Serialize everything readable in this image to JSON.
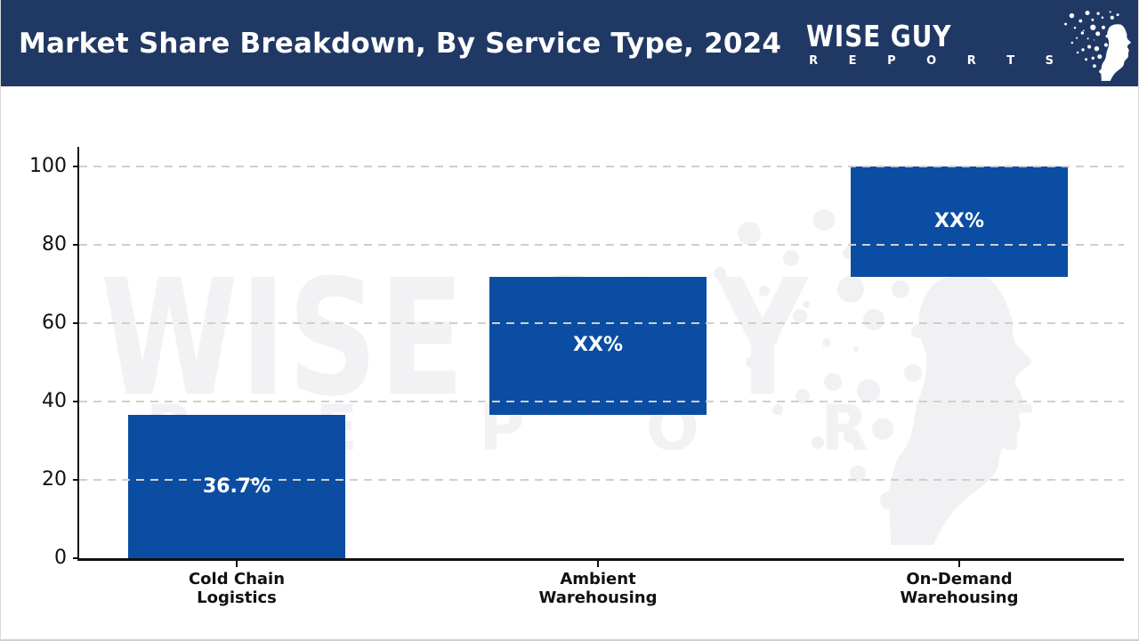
{
  "header": {
    "title": "Market Share Breakdown, By Service Type, 2024",
    "bg_color": "#203864",
    "logo": {
      "line1": "WISE GUY",
      "line2": "R E P O R T S"
    }
  },
  "watermark": {
    "line1": "WISE GUY",
    "line2": "R E P O R T S"
  },
  "chart_data": {
    "type": "bar",
    "variant": "floating-segment-waterfall",
    "title": "Market Share Breakdown, By Service Type, 2024",
    "categories": [
      "Cold Chain Logistics",
      "Ambient Warehousing",
      "On-Demand Warehousing"
    ],
    "category_lines": [
      [
        "Cold Chain",
        "Logistics"
      ],
      [
        "Ambient",
        "Warehousing"
      ],
      [
        "On-Demand",
        "Warehousing"
      ]
    ],
    "series": [
      {
        "name": "Market share segment",
        "segments": [
          {
            "from": 0,
            "to": 36.7
          },
          {
            "from": 36.7,
            "to": 71.9
          },
          {
            "from": 71.9,
            "to": 100
          }
        ]
      }
    ],
    "values": [
      36.7,
      35.2,
      28.1
    ],
    "bar_labels": [
      "36.7%",
      "XX%",
      "XX%"
    ],
    "xlabel": "",
    "ylabel": "",
    "ylim": [
      0,
      100
    ],
    "yticks": [
      0,
      20,
      40,
      60,
      80,
      100
    ],
    "grid": "horizontal-dashed",
    "grid_color": "#cfcfcf",
    "bar_color": "#0b4da2",
    "bar_label_color": "#ffffff",
    "axis_color": "#111111"
  }
}
